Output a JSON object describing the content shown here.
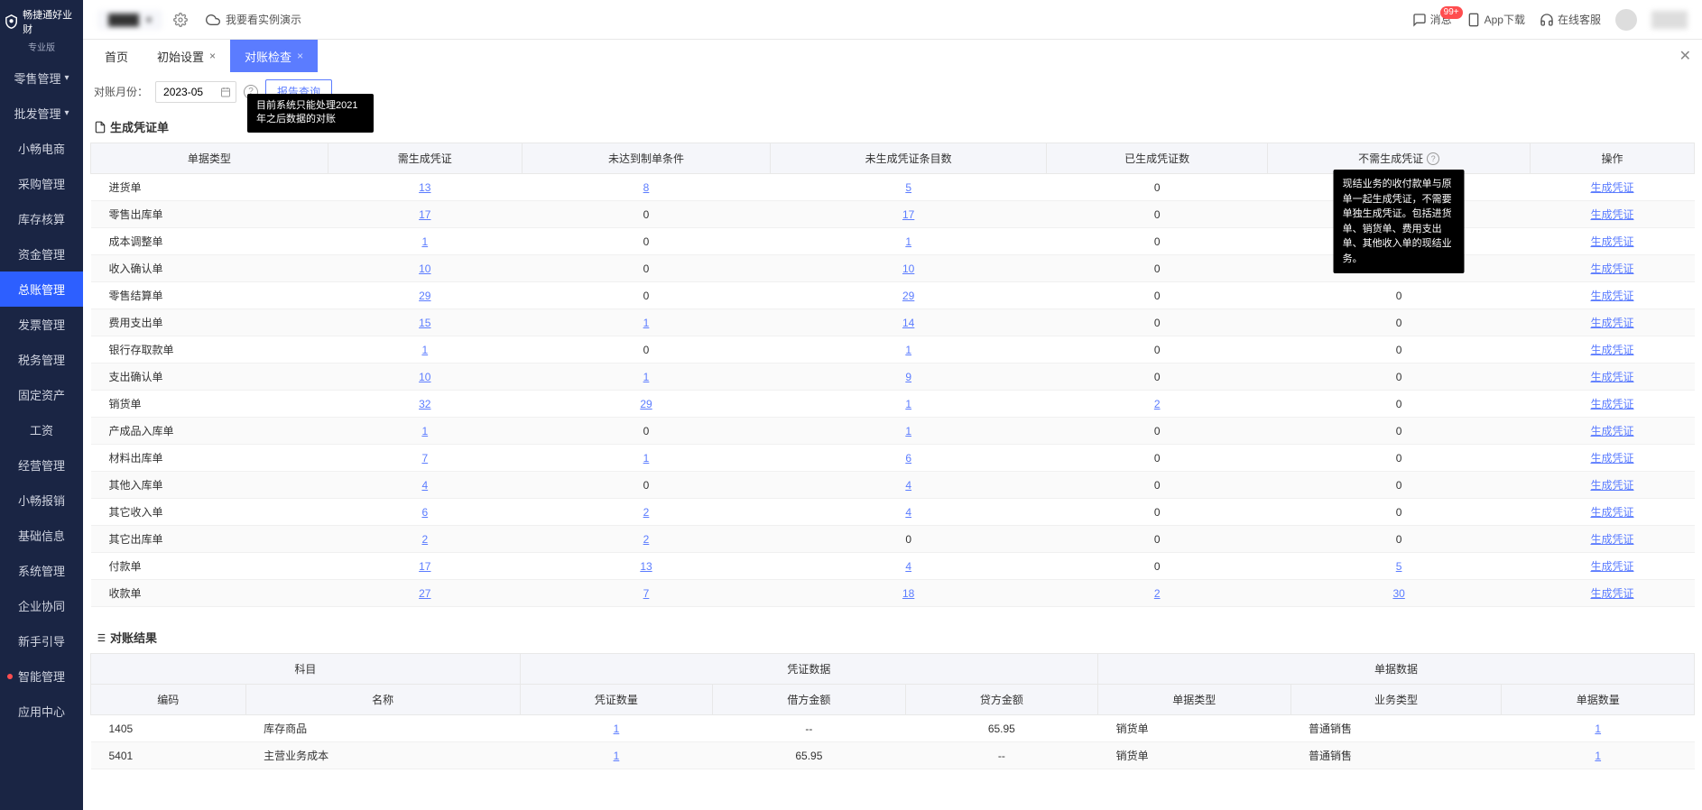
{
  "brand": {
    "name": "畅捷通好业财",
    "edition": "专业版"
  },
  "sidebar": {
    "items": [
      {
        "label": "零售管理",
        "hasChev": true
      },
      {
        "label": "批发管理",
        "hasChev": true
      },
      {
        "label": "小畅电商"
      },
      {
        "label": "采购管理"
      },
      {
        "label": "库存核算"
      },
      {
        "label": "资金管理"
      },
      {
        "label": "总账管理",
        "active": true
      },
      {
        "label": "发票管理"
      },
      {
        "label": "税务管理"
      },
      {
        "label": "固定资产"
      },
      {
        "label": "工资"
      },
      {
        "label": "经营管理"
      },
      {
        "label": "小畅报销"
      },
      {
        "label": "基础信息"
      },
      {
        "label": "系统管理"
      },
      {
        "label": "企业协同"
      },
      {
        "label": "新手引导"
      },
      {
        "label": "智能管理",
        "dot": true
      },
      {
        "label": "应用中心"
      }
    ]
  },
  "topbar": {
    "demo": "我要看实例演示",
    "msg": "消息",
    "msgBadge": "99+",
    "app": "App下载",
    "service": "在线客服"
  },
  "tabs": {
    "items": [
      {
        "label": "首页"
      },
      {
        "label": "初始设置",
        "closable": true
      },
      {
        "label": "对账检查",
        "closable": true,
        "active": true
      }
    ]
  },
  "filter": {
    "label": "对账月份：",
    "date": "2023-05",
    "reportBtn": "报告查询",
    "tooltip": "目前系统只能处理2021年之后数据的对账"
  },
  "section1": {
    "title": "生成凭证单",
    "columns": [
      "单据类型",
      "需生成凭证",
      "未达到制单条件",
      "未生成凭证条目数",
      "已生成凭证数",
      "不需生成凭证",
      "操作"
    ],
    "headerTooltip": "现结业务的收付款单与原单一起生成凭证，不需要单独生成凭证。包括进货单、销货单、费用支出单、其他收入单的现结业务。",
    "actionLabel": "生成凭证",
    "rows": [
      {
        "type": "进货单",
        "c1": "13",
        "c1l": true,
        "c2": "8",
        "c2l": true,
        "c3": "5",
        "c3l": true,
        "c4": "0",
        "c5": ""
      },
      {
        "type": "零售出库单",
        "c1": "17",
        "c1l": true,
        "c2": "0",
        "c3": "17",
        "c3l": true,
        "c4": "0",
        "c5": ""
      },
      {
        "type": "成本调整单",
        "c1": "1",
        "c1l": true,
        "c2": "0",
        "c3": "1",
        "c3l": true,
        "c4": "0",
        "c5": ""
      },
      {
        "type": "收入确认单",
        "c1": "10",
        "c1l": true,
        "c2": "0",
        "c3": "10",
        "c3l": true,
        "c4": "0",
        "c5": ""
      },
      {
        "type": "零售结算单",
        "c1": "29",
        "c1l": true,
        "c2": "0",
        "c3": "29",
        "c3l": true,
        "c4": "0",
        "c5": "0"
      },
      {
        "type": "费用支出单",
        "c1": "15",
        "c1l": true,
        "c2": "1",
        "c2l": true,
        "c3": "14",
        "c3l": true,
        "c4": "0",
        "c5": "0"
      },
      {
        "type": "银行存取款单",
        "c1": "1",
        "c1l": true,
        "c2": "0",
        "c3": "1",
        "c3l": true,
        "c4": "0",
        "c5": "0"
      },
      {
        "type": "支出确认单",
        "c1": "10",
        "c1l": true,
        "c2": "1",
        "c2l": true,
        "c3": "9",
        "c3l": true,
        "c4": "0",
        "c5": "0"
      },
      {
        "type": "销货单",
        "c1": "32",
        "c1l": true,
        "c2": "29",
        "c2l": true,
        "c3": "1",
        "c3l": true,
        "c4": "2",
        "c4l": true,
        "c5": "0"
      },
      {
        "type": "产成品入库单",
        "c1": "1",
        "c1l": true,
        "c2": "0",
        "c3": "1",
        "c3l": true,
        "c4": "0",
        "c5": "0"
      },
      {
        "type": "材料出库单",
        "c1": "7",
        "c1l": true,
        "c2": "1",
        "c2l": true,
        "c3": "6",
        "c3l": true,
        "c4": "0",
        "c5": "0"
      },
      {
        "type": "其他入库单",
        "c1": "4",
        "c1l": true,
        "c2": "0",
        "c3": "4",
        "c3l": true,
        "c4": "0",
        "c5": "0"
      },
      {
        "type": "其它收入单",
        "c1": "6",
        "c1l": true,
        "c2": "2",
        "c2l": true,
        "c3": "4",
        "c3l": true,
        "c4": "0",
        "c5": "0"
      },
      {
        "type": "其它出库单",
        "c1": "2",
        "c1l": true,
        "c2": "2",
        "c2l": true,
        "c3": "0",
        "c4": "0",
        "c5": "0"
      },
      {
        "type": "付款单",
        "c1": "17",
        "c1l": true,
        "c2": "13",
        "c2l": true,
        "c3": "4",
        "c3l": true,
        "c4": "0",
        "c5": "5",
        "c5l": true
      },
      {
        "type": "收款单",
        "c1": "27",
        "c1l": true,
        "c2": "7",
        "c2l": true,
        "c3": "18",
        "c3l": true,
        "c4": "2",
        "c4l": true,
        "c5": "30",
        "c5l": true
      }
    ]
  },
  "section2": {
    "title": "对账结果",
    "group1": "科目",
    "group2": "凭证数据",
    "group3": "单据数据",
    "columns": [
      "编码",
      "名称",
      "凭证数量",
      "借方金额",
      "贷方金额",
      "单据类型",
      "业务类型",
      "单据数量"
    ],
    "rows": [
      {
        "code": "1405",
        "name": "库存商品",
        "vc": "1",
        "vcl": true,
        "dr": "--",
        "cr": "65.95",
        "btype": "销货单",
        "bcat": "普通销售",
        "bc": "1",
        "bcll": true
      },
      {
        "code": "5401",
        "name": "主营业务成本",
        "vc": "1",
        "vcl": true,
        "dr": "65.95",
        "cr": "--",
        "btype": "销货单",
        "bcat": "普通销售",
        "bc": "1",
        "bcll": true
      }
    ]
  }
}
